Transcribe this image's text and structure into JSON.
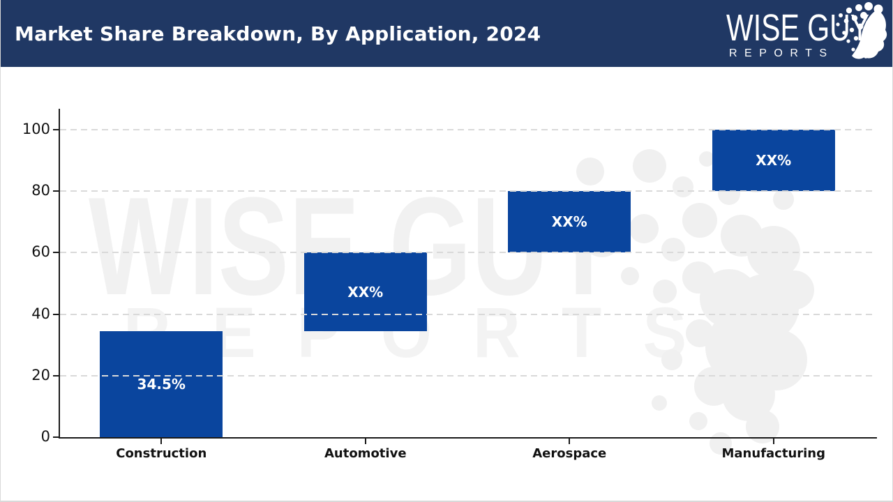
{
  "header": {
    "title": "Market Share Breakdown, By Application, 2024",
    "bg_color": "#203864",
    "logo": {
      "line1": "WISE GUY",
      "line2": "R E P O R T S"
    }
  },
  "watermark": {
    "line1": "WISE GUY",
    "line2": "R E P O R T S"
  },
  "chart_data": {
    "type": "bar",
    "subtype": "floating-waterfall",
    "title": "Market Share Breakdown, By Application, 2024",
    "categories": [
      "Construction",
      "Automotive",
      "Aerospace",
      "Manufacturing"
    ],
    "series": [
      {
        "name": "Market Share (%)",
        "segments": [
          {
            "category": "Construction",
            "start": 0,
            "end": 34.5,
            "label": "34.5%"
          },
          {
            "category": "Automotive",
            "start": 34.5,
            "end": 60,
            "label": "XX%"
          },
          {
            "category": "Aerospace",
            "start": 60,
            "end": 80,
            "label": "XX%"
          },
          {
            "category": "Manufacturing",
            "start": 80,
            "end": 100,
            "label": "XX%"
          }
        ]
      }
    ],
    "ylim": [
      0,
      100
    ],
    "yticks": [
      0,
      20,
      40,
      60,
      80,
      100
    ],
    "xlabel": "",
    "ylabel": "",
    "legend": "none",
    "grid": "horizontal-dashed-over-bars",
    "bar_color": "#0a459e",
    "bar_label_color": "#ffffff",
    "grid_color": "#d9d9d9",
    "axis_color": "#1a1a1a",
    "background_color": "#ffffff"
  }
}
